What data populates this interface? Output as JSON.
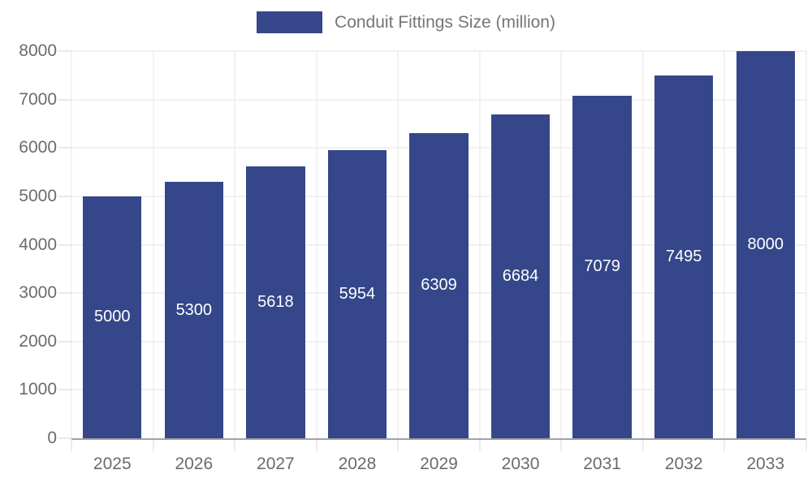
{
  "chart_data": {
    "type": "bar",
    "title": "Conduit Fittings Size (million)",
    "legend": {
      "label": "Conduit Fittings Size (million)",
      "position": "top-center"
    },
    "categories": [
      "2025",
      "2026",
      "2027",
      "2028",
      "2029",
      "2030",
      "2031",
      "2032",
      "2033"
    ],
    "values": [
      5000,
      5300,
      5618,
      5954,
      6309,
      6684,
      7079,
      7495,
      8000
    ],
    "xlabel": "",
    "ylabel": "",
    "ylim": [
      0,
      8000
    ],
    "yticks": [
      0,
      1000,
      2000,
      3000,
      4000,
      5000,
      6000,
      7000,
      8000
    ],
    "grid": true,
    "colors": {
      "bar": "#35478a",
      "value_label": "#ffffff",
      "axis_label": "#6b6b6b",
      "legend_text": "#757575",
      "gridline": "#e3e3e3",
      "axis_line": "#a2a2a2",
      "tick": "#d2d2d2"
    }
  }
}
